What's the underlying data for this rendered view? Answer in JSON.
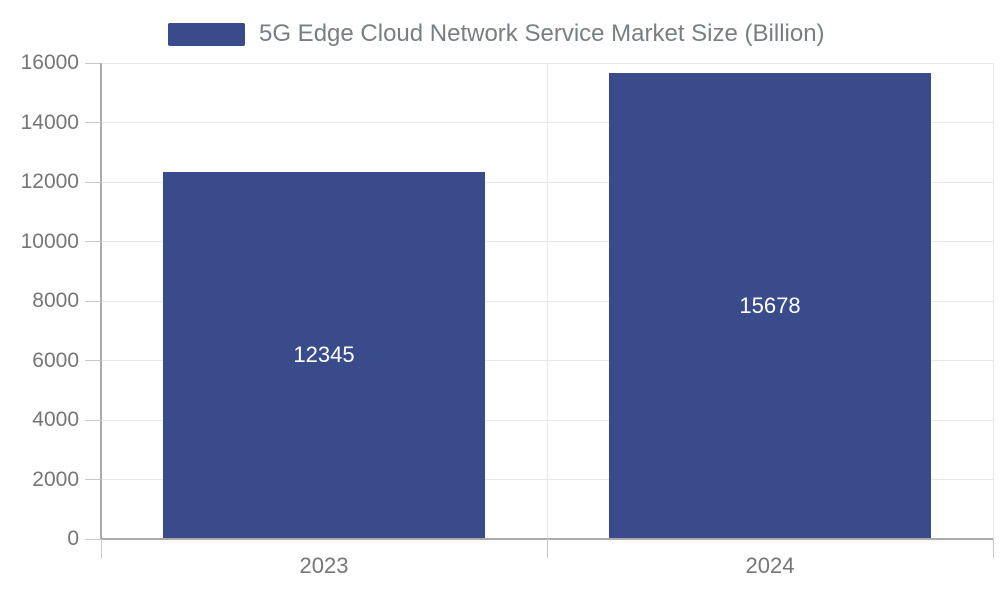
{
  "chart_data": {
    "type": "bar",
    "title": "5G Edge Cloud Network Service Market Size (Billion)",
    "categories": [
      "2023",
      "2024"
    ],
    "series": [
      {
        "name": "5G Edge Cloud Network Service Market Size (Billion)",
        "values": [
          12345,
          15678
        ]
      }
    ],
    "value_labels": [
      "12345",
      "15678"
    ],
    "xlabel": "",
    "ylabel": "",
    "ylim": [
      0,
      16000
    ],
    "yticks": [
      0,
      2000,
      4000,
      6000,
      8000,
      10000,
      12000,
      14000,
      16000
    ],
    "grid": true,
    "legend_position": "top"
  },
  "legend": {
    "label": "5G Edge Cloud Network Service Market Size (Billion)"
  },
  "colors": {
    "background": "#ffffff",
    "bar": "#3A4B8C",
    "gridline": "#E8E8E8",
    "axis_line": "#ABABAB",
    "tick": "#C9C9C9",
    "axis_text": "#767676",
    "legend_text": "#7B7E81",
    "value_text": "#ffffff"
  }
}
